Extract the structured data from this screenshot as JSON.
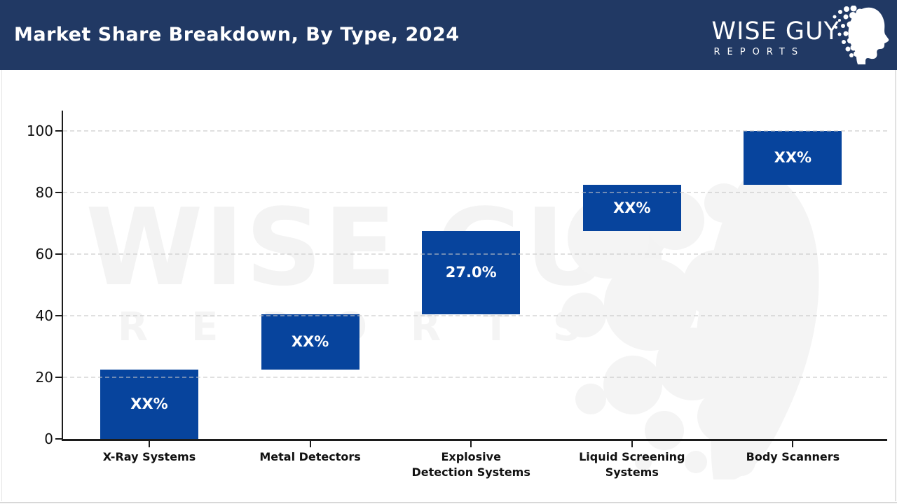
{
  "header": {
    "title": "Market Share Breakdown, By Type, 2024",
    "bg_color": "#213964",
    "logo": {
      "wordmark": "WISE GUY",
      "subtitle": "REPORTS"
    }
  },
  "watermark": {
    "line1": "WISE GUY",
    "line2": "REPORTS"
  },
  "chart_data": {
    "type": "bar",
    "variant": "waterfall",
    "title": "Market Share Breakdown, By Type, 2024",
    "categories": [
      "X-Ray Systems",
      "Metal Detectors",
      "Explosive\nDetection Systems",
      "Liquid Screening\nSystems",
      "Body Scanners"
    ],
    "segments": [
      {
        "category": "X-Ray Systems",
        "label": "XX%",
        "start": 0,
        "end": 22.5
      },
      {
        "category": "Metal Detectors",
        "label": "XX%",
        "start": 22.5,
        "end": 40.5
      },
      {
        "category": "Explosive Detection Systems",
        "label": "27.0%",
        "start": 40.5,
        "end": 67.5,
        "value": 27.0
      },
      {
        "category": "Liquid Screening Systems",
        "label": "XX%",
        "start": 67.5,
        "end": 82.5
      },
      {
        "category": "Body Scanners",
        "label": "XX%",
        "start": 82.5,
        "end": 100
      }
    ],
    "y_ticks": [
      0,
      20,
      40,
      60,
      80,
      100
    ],
    "ylim": [
      0,
      106
    ],
    "xlabel": "",
    "ylabel": "",
    "bar_color": "#07449d",
    "bar_label_color": "#ffffff",
    "grid": {
      "axis": "y",
      "style": "dashed",
      "color": "#d9d9d9",
      "on": true
    },
    "legend": "none"
  }
}
